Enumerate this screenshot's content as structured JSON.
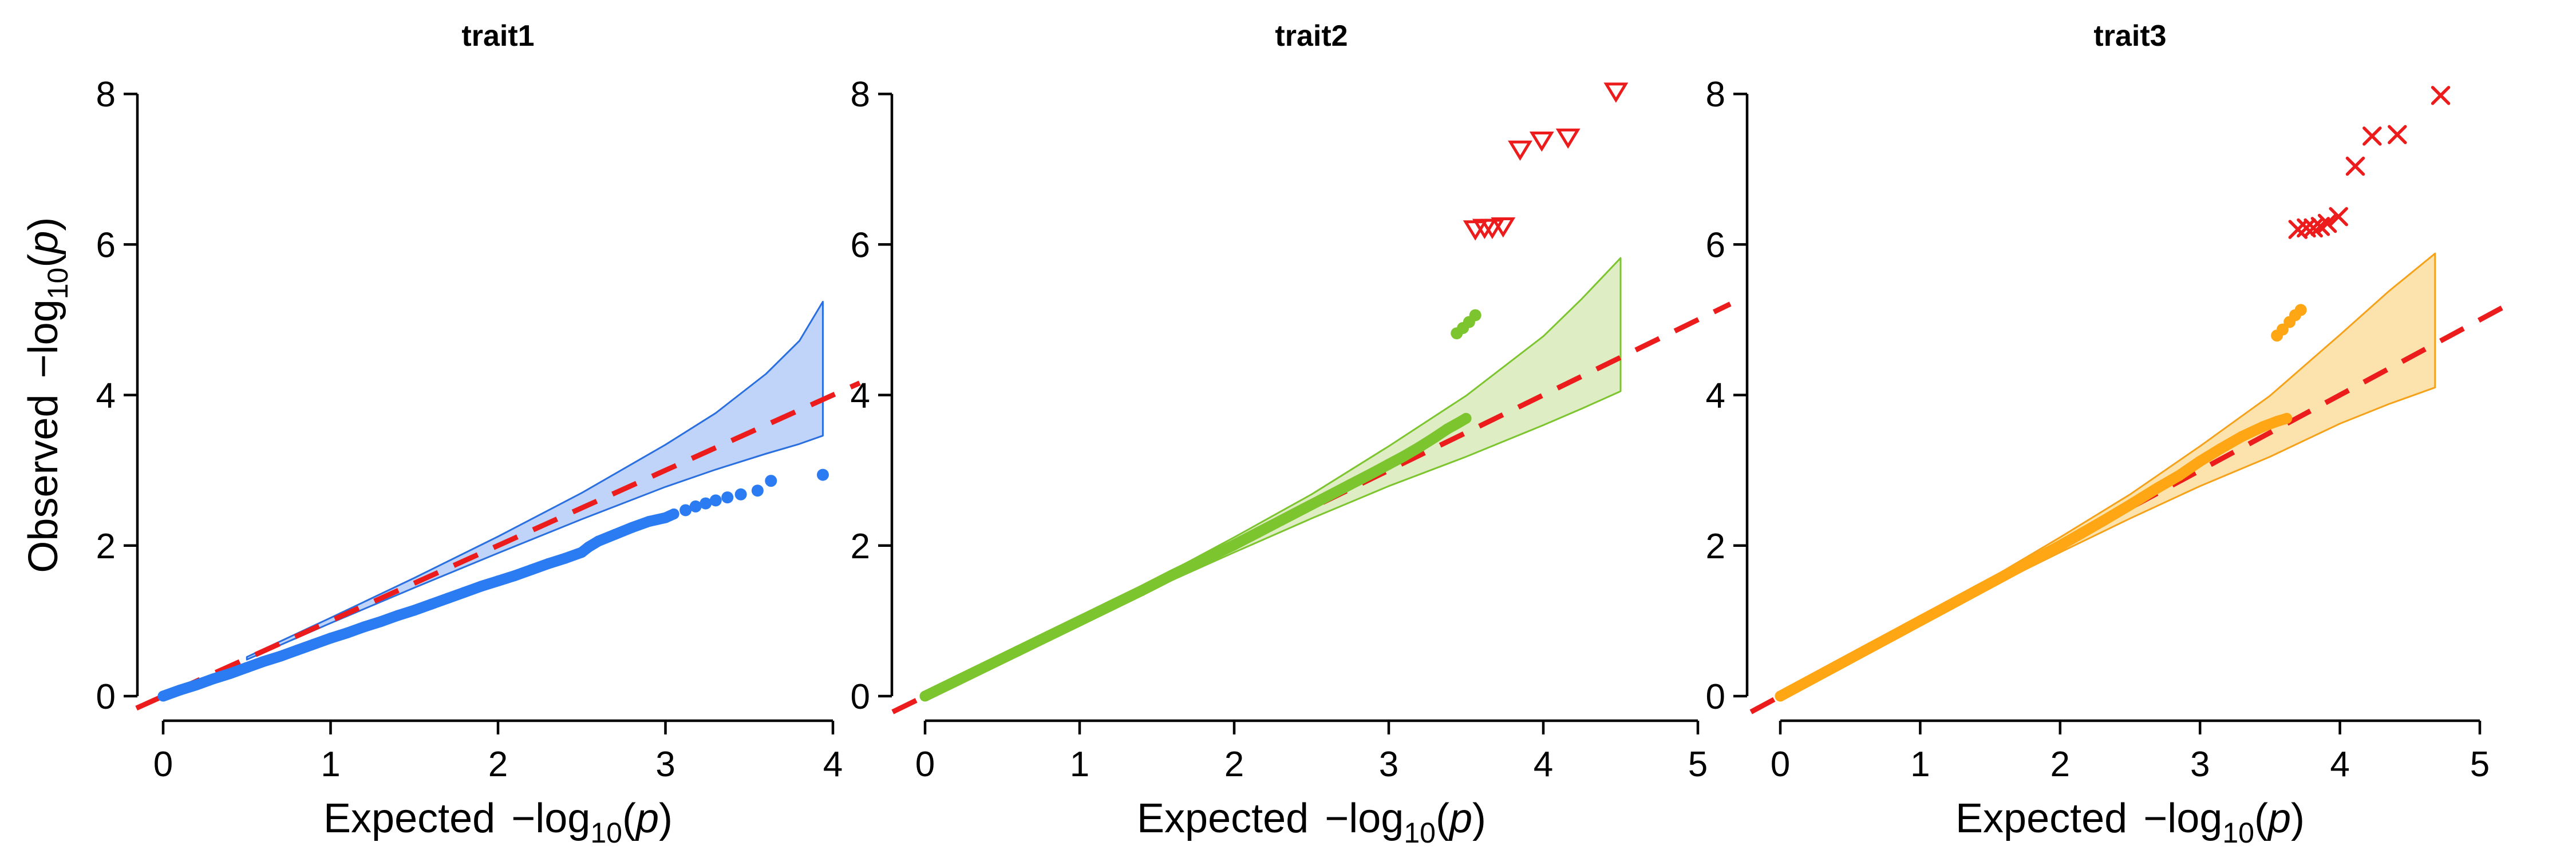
{
  "figure": {
    "background": "#ffffff",
    "identity_line_color": "#ed1c1c",
    "axis_color": "#000000",
    "xlabel": {
      "prefix": "Expected",
      "log_text": "−log",
      "subscript": "10",
      "open": "(",
      "variable": "p",
      "close": ")"
    },
    "ylabel": {
      "prefix": "Observed",
      "log_text": "−log",
      "subscript": "10",
      "open": "(",
      "variable": "p",
      "close": ")"
    }
  },
  "chart_data": {
    "type": "scatter",
    "subtype": "qq-plot",
    "grid": false,
    "legend": false,
    "y_ticks": [
      0,
      2,
      4,
      6,
      8
    ],
    "ylim": [
      -0.32,
      8.32
    ],
    "panels": [
      {
        "title": "trait1",
        "x_ticks": [
          0,
          1,
          2,
          3,
          4
        ],
        "xlim": [
          -0.16,
          4.16
        ],
        "point_color": "#2b7bf3",
        "band_fill": "#bfd4f8",
        "band_edge": "#2a6fe0",
        "outlier_marker": "none",
        "dense": [
          [
            0,
            0
          ],
          [
            0.1,
            0.08
          ],
          [
            0.2,
            0.15
          ],
          [
            0.3,
            0.23
          ],
          [
            0.4,
            0.3
          ],
          [
            0.5,
            0.38
          ],
          [
            0.6,
            0.46
          ],
          [
            0.7,
            0.53
          ],
          [
            0.8,
            0.61
          ],
          [
            0.9,
            0.69
          ],
          [
            1.0,
            0.77
          ],
          [
            1.1,
            0.84
          ],
          [
            1.2,
            0.92
          ],
          [
            1.3,
            0.99
          ],
          [
            1.4,
            1.07
          ],
          [
            1.5,
            1.14
          ],
          [
            1.6,
            1.22
          ],
          [
            1.7,
            1.3
          ],
          [
            1.8,
            1.38
          ],
          [
            1.9,
            1.46
          ],
          [
            2.0,
            1.53
          ],
          [
            2.1,
            1.6
          ],
          [
            2.2,
            1.68
          ],
          [
            2.3,
            1.76
          ],
          [
            2.4,
            1.83
          ],
          [
            2.5,
            1.91
          ],
          [
            2.54,
            1.98
          ],
          [
            2.6,
            2.06
          ],
          [
            2.7,
            2.15
          ],
          [
            2.8,
            2.24
          ],
          [
            2.9,
            2.32
          ],
          [
            3.0,
            2.37
          ],
          [
            3.05,
            2.42
          ]
        ],
        "dots": [
          [
            3.12,
            2.47
          ],
          [
            3.18,
            2.52
          ],
          [
            3.24,
            2.56
          ],
          [
            3.3,
            2.6
          ],
          [
            3.37,
            2.64
          ],
          [
            3.45,
            2.68
          ],
          [
            3.55,
            2.73
          ],
          [
            3.63,
            2.86
          ],
          [
            3.94,
            2.94
          ]
        ],
        "outliers": [],
        "band": [
          [
            0.5,
            0.485,
            0.52
          ],
          [
            1.0,
            0.97,
            1.04
          ],
          [
            1.5,
            1.44,
            1.57
          ],
          [
            2.0,
            1.9,
            2.12
          ],
          [
            2.5,
            2.35,
            2.7
          ],
          [
            3.0,
            2.78,
            3.34
          ],
          [
            3.3,
            3.01,
            3.76
          ],
          [
            3.6,
            3.22,
            4.28
          ],
          [
            3.8,
            3.35,
            4.72
          ],
          [
            3.94,
            3.46,
            5.24
          ]
        ]
      },
      {
        "title": "trait2",
        "x_ticks": [
          0,
          1,
          2,
          3,
          4,
          5
        ],
        "xlim": [
          -0.21,
          5.21
        ],
        "point_color": "#7dc52e",
        "band_fill": "#deedc4",
        "band_edge": "#7dc52e",
        "outlier_marker": "triangle-down-open",
        "outlier_color": "#ed1c1c",
        "dense": [
          [
            0,
            0
          ],
          [
            0.2,
            0.2
          ],
          [
            0.4,
            0.4
          ],
          [
            0.6,
            0.6
          ],
          [
            0.8,
            0.8
          ],
          [
            1.0,
            1.0
          ],
          [
            1.2,
            1.2
          ],
          [
            1.4,
            1.4
          ],
          [
            1.6,
            1.61
          ],
          [
            1.8,
            1.81
          ],
          [
            2.0,
            2.01
          ],
          [
            2.15,
            2.17
          ],
          [
            2.3,
            2.33
          ],
          [
            2.45,
            2.49
          ],
          [
            2.6,
            2.65
          ],
          [
            2.75,
            2.81
          ],
          [
            2.9,
            2.97
          ],
          [
            3.0,
            3.08
          ],
          [
            3.1,
            3.19
          ],
          [
            3.2,
            3.31
          ],
          [
            3.3,
            3.44
          ],
          [
            3.38,
            3.55
          ],
          [
            3.45,
            3.63
          ],
          [
            3.5,
            3.69
          ]
        ],
        "dots": [
          [
            3.44,
            4.82
          ],
          [
            3.48,
            4.89
          ],
          [
            3.52,
            4.97
          ],
          [
            3.56,
            5.06
          ]
        ],
        "outliers": [
          [
            3.56,
            6.21
          ],
          [
            3.62,
            6.23
          ],
          [
            3.67,
            6.23
          ],
          [
            3.74,
            6.25
          ],
          [
            3.85,
            7.27
          ],
          [
            3.99,
            7.39
          ],
          [
            4.16,
            7.43
          ],
          [
            4.47,
            8.04
          ]
        ],
        "band": [
          [
            0.5,
            0.485,
            0.52
          ],
          [
            1.0,
            0.97,
            1.04
          ],
          [
            1.5,
            1.45,
            1.56
          ],
          [
            2.0,
            1.91,
            2.11
          ],
          [
            2.5,
            2.36,
            2.68
          ],
          [
            3.0,
            2.79,
            3.32
          ],
          [
            3.5,
            3.18,
            3.99
          ],
          [
            4.0,
            3.6,
            4.78
          ],
          [
            4.25,
            3.82,
            5.28
          ],
          [
            4.5,
            4.05,
            5.82
          ]
        ]
      },
      {
        "title": "trait3",
        "x_ticks": [
          0,
          1,
          2,
          3,
          4,
          5
        ],
        "xlim": [
          -0.21,
          5.21
        ],
        "point_color": "#ffa614",
        "band_fill": "#fce2ac",
        "band_edge": "#f5a21a",
        "outlier_marker": "x",
        "outlier_color": "#ed1c1c",
        "dense": [
          [
            0,
            0
          ],
          [
            0.2,
            0.2
          ],
          [
            0.4,
            0.4
          ],
          [
            0.6,
            0.6
          ],
          [
            0.8,
            0.8
          ],
          [
            1.0,
            1.0
          ],
          [
            1.2,
            1.2
          ],
          [
            1.4,
            1.4
          ],
          [
            1.6,
            1.6
          ],
          [
            1.8,
            1.8
          ],
          [
            2.0,
            2.0
          ],
          [
            2.15,
            2.16
          ],
          [
            2.3,
            2.32
          ],
          [
            2.5,
            2.54
          ],
          [
            2.7,
            2.77
          ],
          [
            2.85,
            2.93
          ],
          [
            3.0,
            3.12
          ],
          [
            3.15,
            3.29
          ],
          [
            3.3,
            3.45
          ],
          [
            3.45,
            3.58
          ],
          [
            3.55,
            3.65
          ],
          [
            3.62,
            3.69
          ]
        ],
        "dots": [
          [
            3.55,
            4.79
          ],
          [
            3.59,
            4.87
          ],
          [
            3.64,
            4.97
          ],
          [
            3.68,
            5.06
          ],
          [
            3.72,
            5.13
          ]
        ],
        "outliers": [
          [
            3.7,
            6.2
          ],
          [
            3.76,
            6.22
          ],
          [
            3.81,
            6.22
          ],
          [
            3.86,
            6.24
          ],
          [
            3.91,
            6.28
          ],
          [
            3.99,
            6.37
          ],
          [
            4.11,
            7.04
          ],
          [
            4.23,
            7.44
          ],
          [
            4.41,
            7.46
          ],
          [
            4.72,
            7.98
          ]
        ],
        "band": [
          [
            0.5,
            0.485,
            0.52
          ],
          [
            1.0,
            0.97,
            1.04
          ],
          [
            1.5,
            1.45,
            1.56
          ],
          [
            2.0,
            1.91,
            2.11
          ],
          [
            2.5,
            2.36,
            2.68
          ],
          [
            3.0,
            2.79,
            3.32
          ],
          [
            3.5,
            3.18,
            3.99
          ],
          [
            4.0,
            3.62,
            4.8
          ],
          [
            4.35,
            3.88,
            5.38
          ],
          [
            4.68,
            4.1,
            5.88
          ]
        ]
      }
    ]
  }
}
